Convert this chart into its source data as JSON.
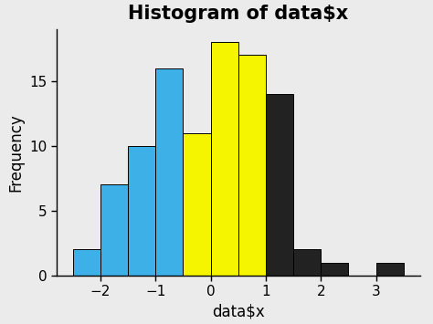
{
  "title": "Histogram of data$x",
  "xlabel": "data$x",
  "ylabel": "Frequency",
  "background_color": "#ebebeb",
  "plot_bg_color": "#ebebeb",
  "bar_edges": [
    -2.5,
    -2.0,
    -1.5,
    -1.0,
    -0.5,
    0.0,
    0.5,
    1.0,
    1.5,
    2.0,
    2.5,
    3.0,
    3.5
  ],
  "bar_heights": [
    2,
    7,
    10,
    16,
    11,
    18,
    17,
    14,
    2,
    1,
    0,
    1
  ],
  "bar_colors": [
    "#3db0e8",
    "#3db0e8",
    "#3db0e8",
    "#3db0e8",
    "#f5f500",
    "#f5f500",
    "#f5f500",
    "#222222",
    "#222222",
    "#222222",
    "#222222",
    "#222222"
  ],
  "edgecolor": "#000000",
  "xlim": [
    -2.8,
    3.8
  ],
  "ylim": [
    0,
    19
  ],
  "yticks": [
    0,
    5,
    10,
    15
  ],
  "xticks": [
    -2,
    -1,
    0,
    1,
    2,
    3
  ],
  "title_fontsize": 15,
  "label_fontsize": 12,
  "tick_fontsize": 11
}
